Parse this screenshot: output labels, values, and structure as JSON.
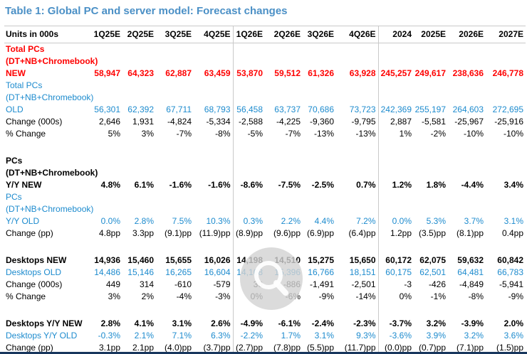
{
  "title": "Table 1: Global PC and server model: Forecast changes",
  "colors": {
    "title_blue": "#4b90c6",
    "accent_red": "#fe0000",
    "accent_blue": "#1d8bce",
    "rule_gray": "#c9c9c9",
    "bottom_rule_navy": "#17365d",
    "watermark_gray": "#d2d2d2"
  },
  "watermark": {
    "icon": "magnifier-icon"
  },
  "table": {
    "unit_label": "Units in 000s",
    "columns": [
      "1Q25E",
      "2Q25E",
      "3Q25E",
      "4Q25E",
      "1Q26E",
      "2Q26E",
      "3Q26E",
      "4Q26E",
      "2024",
      "2025E",
      "2026E",
      "2027E"
    ],
    "rows": [
      {
        "style": "red",
        "labels": [
          "Total PCs",
          "(DT+NB+Chromebook)",
          "NEW"
        ],
        "values": [
          "58,947",
          "64,323",
          "62,887",
          "63,459",
          "53,870",
          "59,512",
          "61,326",
          "63,928",
          "245,257",
          "249,617",
          "238,636",
          "246,778"
        ]
      },
      {
        "style": "blue",
        "labels": [
          "Total PCs",
          "(DT+NB+Chromebook)",
          "OLD"
        ],
        "values": [
          "56,301",
          "62,392",
          "67,711",
          "68,793",
          "56,458",
          "63,737",
          "70,686",
          "73,723",
          "242,369",
          "255,197",
          "264,603",
          "272,695"
        ]
      },
      {
        "style": "plain",
        "labels": [
          "Change (000s)"
        ],
        "values": [
          "2,646",
          "1,931",
          "-4,824",
          "-5,334",
          "-2,588",
          "-4,225",
          "-9,360",
          "-9,795",
          "2,887",
          "-5,581",
          "-25,967",
          "-25,916"
        ]
      },
      {
        "style": "plain",
        "labels": [
          "% Change"
        ],
        "values": [
          "5%",
          "3%",
          "-7%",
          "-8%",
          "-5%",
          "-7%",
          "-13%",
          "-13%",
          "1%",
          "-2%",
          "-10%",
          "-10%"
        ]
      },
      {
        "style": "blank"
      },
      {
        "style": "bold",
        "labels": [
          "PCs",
          "(DT+NB+Chromebook)",
          "Y/Y NEW"
        ],
        "values": [
          "4.8%",
          "6.1%",
          "-1.6%",
          "-1.6%",
          "-8.6%",
          "-7.5%",
          "-2.5%",
          "0.7%",
          "1.2%",
          "1.8%",
          "-4.4%",
          "3.4%"
        ]
      },
      {
        "style": "blue",
        "labels": [
          "PCs",
          "(DT+NB+Chromebook)",
          "Y/Y OLD"
        ],
        "values": [
          "0.0%",
          "2.8%",
          "7.5%",
          "10.3%",
          "0.3%",
          "2.2%",
          "4.4%",
          "7.2%",
          "0.0%",
          "5.3%",
          "3.7%",
          "3.1%"
        ]
      },
      {
        "style": "plain",
        "labels": [
          "Change (pp)"
        ],
        "values": [
          "4.8pp",
          "3.3pp",
          "(9.1)pp",
          "(11.9)pp",
          "(8.9)pp",
          "(9.6)pp",
          "(6.9)pp",
          "(6.4)pp",
          "1.2pp",
          "(3.5)pp",
          "(8.1)pp",
          "0.4pp"
        ]
      },
      {
        "style": "blank"
      },
      {
        "style": "bold",
        "labels": [
          "Desktops NEW"
        ],
        "values": [
          "14,936",
          "15,460",
          "15,655",
          "16,026",
          "14,198",
          "14,510",
          "15,275",
          "15,650",
          "60,172",
          "62,075",
          "59,632",
          "60,842"
        ]
      },
      {
        "style": "blue",
        "labels": [
          "Desktops OLD"
        ],
        "values": [
          "14,486",
          "15,146",
          "16,265",
          "16,604",
          "14,168",
          "15,396",
          "16,766",
          "18,151",
          "60,175",
          "62,501",
          "64,481",
          "66,783"
        ]
      },
      {
        "style": "plain",
        "labels": [
          "Change (000s)"
        ],
        "values": [
          "449",
          "314",
          "-610",
          "-579",
          "30",
          "-886",
          "-1,491",
          "-2,501",
          "-3",
          "-426",
          "-4,849",
          "-5,941"
        ]
      },
      {
        "style": "plain",
        "labels": [
          "% Change"
        ],
        "values": [
          "3%",
          "2%",
          "-4%",
          "-3%",
          "0%",
          "-6%",
          "-9%",
          "-14%",
          "0%",
          "-1%",
          "-8%",
          "-9%"
        ]
      },
      {
        "style": "blank"
      },
      {
        "style": "bold",
        "labels": [
          "Desktops Y/Y NEW"
        ],
        "values": [
          "2.8%",
          "4.1%",
          "3.1%",
          "2.6%",
          "-4.9%",
          "-6.1%",
          "-2.4%",
          "-2.3%",
          "-3.7%",
          "3.2%",
          "-3.9%",
          "2.0%"
        ]
      },
      {
        "style": "blue",
        "labels": [
          "Desktops Y/Y OLD"
        ],
        "values": [
          "-0.3%",
          "2.1%",
          "7.1%",
          "6.3%",
          "-2.2%",
          "1.7%",
          "3.1%",
          "9.3%",
          "-3.6%",
          "3.9%",
          "3.2%",
          "3.6%"
        ]
      },
      {
        "style": "plain",
        "labels": [
          "Change (pp)"
        ],
        "values": [
          "3.1pp",
          "2.1pp",
          "(4.0)pp",
          "(3.7)pp",
          "(2.7)pp",
          "(7.8)pp",
          "(5.5)pp",
          "(11.7)pp",
          "(0.0)pp",
          "(0.7)pp",
          "(7.1)pp",
          "(1.5)pp"
        ]
      }
    ]
  }
}
